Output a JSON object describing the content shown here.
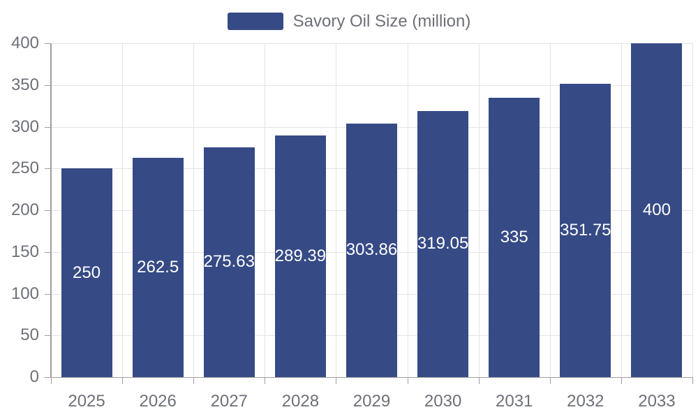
{
  "legend": {
    "label": "Savory Oil Size (million)"
  },
  "chart_data": {
    "type": "bar",
    "title": "Savory Oil Size (million)",
    "categories": [
      "2025",
      "2026",
      "2027",
      "2028",
      "2029",
      "2030",
      "2031",
      "2032",
      "2033"
    ],
    "values": [
      250,
      262.5,
      275.63,
      289.39,
      303.86,
      319.05,
      335,
      351.75,
      400
    ],
    "value_labels": [
      "250",
      "262.5",
      "275.63",
      "289.39",
      "303.86",
      "319.05",
      "335",
      "351.75",
      "400"
    ],
    "series_name": "Savory Oil Size (million)",
    "xlabel": "",
    "ylabel": "",
    "ylim": [
      0,
      400
    ],
    "yticks": [
      0,
      50,
      100,
      150,
      200,
      250,
      300,
      350,
      400
    ],
    "grid": true,
    "legend_position": "top-center",
    "colors": {
      "bar": "#364a85",
      "grid": "#e3e3e3",
      "axis": "#9e9e9e",
      "tick_text": "#6e7079",
      "value_label": "#ffffff"
    }
  }
}
